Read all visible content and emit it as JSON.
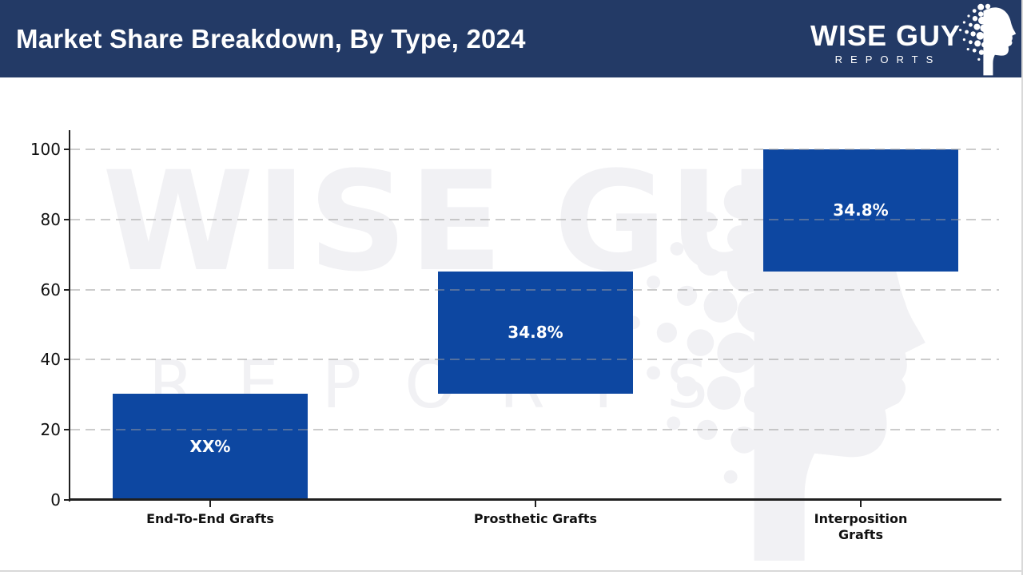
{
  "header": {
    "title": "Market Share Breakdown, By Type, 2024"
  },
  "logo": {
    "name": "WISE GUY",
    "tagline": "REPORTS"
  },
  "colors": {
    "header_bg": "#233a66",
    "bar_blue": "#0d47a1",
    "axis": "#1f1f1f",
    "grid": "#9a9a9a",
    "tick_label": "#111111",
    "bar_label": "#ffffff",
    "watermark": "#f1f1f4",
    "edge_line": "#d9d9d9"
  },
  "chart_data": {
    "type": "bar",
    "subtype": "floating-waterfall",
    "title": "Market Share Breakdown, By Type, 2024",
    "categories": [
      "End-To-End Grafts",
      "Prosthetic Grafts",
      "Interposition\nGrafts"
    ],
    "bars": [
      {
        "category": "End-To-End Grafts",
        "start": 0,
        "end": 30.4,
        "label": "XX%"
      },
      {
        "category": "Prosthetic Grafts",
        "start": 30.4,
        "end": 65.2,
        "label": "34.8%"
      },
      {
        "category": "Interposition Grafts",
        "start": 65.2,
        "end": 100,
        "label": "34.8%"
      }
    ],
    "yticks": [
      0,
      20,
      40,
      60,
      80,
      100
    ],
    "ylim": [
      0,
      100
    ],
    "grid": "horizontal-dashed",
    "legend": "none"
  }
}
